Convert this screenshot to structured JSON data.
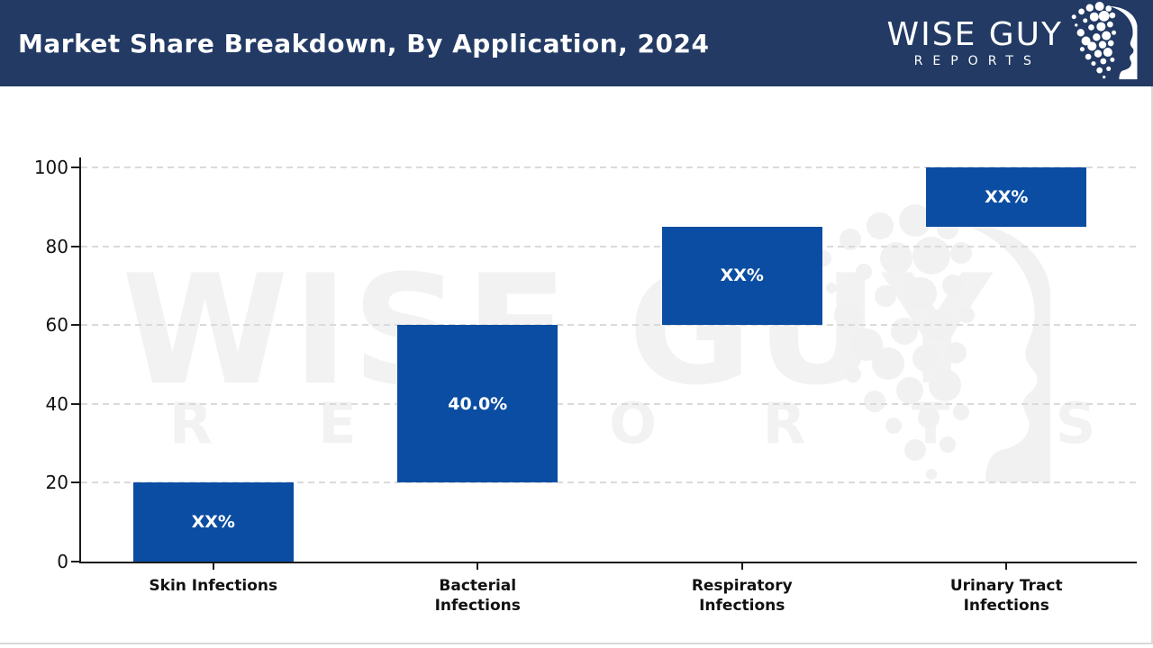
{
  "header": {
    "title": "Market Share Breakdown, By Application, 2024",
    "logo_line1": "WISE GUY",
    "logo_line2": "REPORTS"
  },
  "watermark": {
    "line1": "WISE GUY",
    "line2": "R E P O R T S"
  },
  "colors": {
    "header_bg": "#223a64",
    "bar": "#0b4da2",
    "bar_label": "#ffffff",
    "axis": "#1a1a1a",
    "grid": "#dadada",
    "watermark": "#f2f2f2"
  },
  "chart_data": {
    "type": "bar",
    "subtype": "waterfall",
    "title": "Market Share Breakdown, By Application, 2024",
    "categories": [
      "Skin Infections",
      "Bacterial Infections",
      "Respiratory Infections",
      "Urinary Tract Infections"
    ],
    "xtick_display": [
      "Skin Infections",
      "Bacterial\nInfections",
      "Respiratory\nInfections",
      "Urinary Tract\nInfections"
    ],
    "segments": [
      {
        "category": "Skin Infections",
        "start": 0,
        "end": 20,
        "label": "XX%"
      },
      {
        "category": "Bacterial Infections",
        "start": 20,
        "end": 60,
        "label": "40.0%"
      },
      {
        "category": "Respiratory Infections",
        "start": 60,
        "end": 85,
        "label": "XX%"
      },
      {
        "category": "Urinary Tract Infections",
        "start": 85,
        "end": 100,
        "label": "XX%"
      }
    ],
    "ylim": [
      0,
      100
    ],
    "yticks": [
      0,
      20,
      40,
      60,
      80,
      100
    ],
    "xlabel": "",
    "ylabel": "",
    "grid": "horizontal-dashed",
    "legend": "none",
    "bar_color": "#0b4da2",
    "bar_label_color": "#ffffff"
  }
}
